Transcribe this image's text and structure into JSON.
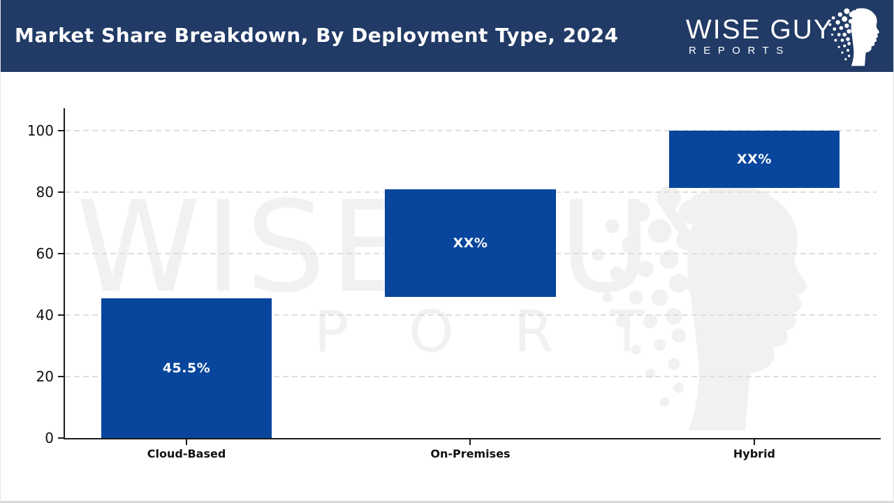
{
  "header": {
    "title": "Market Share Breakdown, By Deployment Type, 2024",
    "logo": {
      "line1": "WISE GUY",
      "line2": "REPORTS"
    }
  },
  "watermark": {
    "line1": "WISE GUY",
    "line2": "REPORTS"
  },
  "colors": {
    "header_bg": "#213a66",
    "title_text": "#ffffff",
    "bar": "#08459c",
    "bar_label": "#ffffff",
    "grid": "#dedede",
    "axis": "#1a1a1a",
    "watermark": "#f1f1f1"
  },
  "chart_data": {
    "type": "bar",
    "subtype": "floating-waterfall-breakdown",
    "title": "Market Share Breakdown, By Deployment Type, 2024",
    "categories": [
      "Cloud-Based",
      "On-Premises",
      "Hybrid"
    ],
    "segments": [
      {
        "category": "Cloud-Based",
        "start": 0,
        "end": 45.5,
        "data_label": "45.5%"
      },
      {
        "category": "On-Premises",
        "start": 46,
        "end": 81,
        "data_label": "XX%"
      },
      {
        "category": "Hybrid",
        "start": 81.5,
        "end": 100,
        "data_label": "XX%"
      }
    ],
    "yticks": [
      0,
      20,
      40,
      60,
      80,
      100
    ],
    "ylim": [
      0,
      107.3
    ],
    "xlabel": "",
    "ylabel": "",
    "grid": "horizontal-dashed",
    "legend": "none",
    "bar_color": "#08459c",
    "value_labels_inside_bars": true
  }
}
